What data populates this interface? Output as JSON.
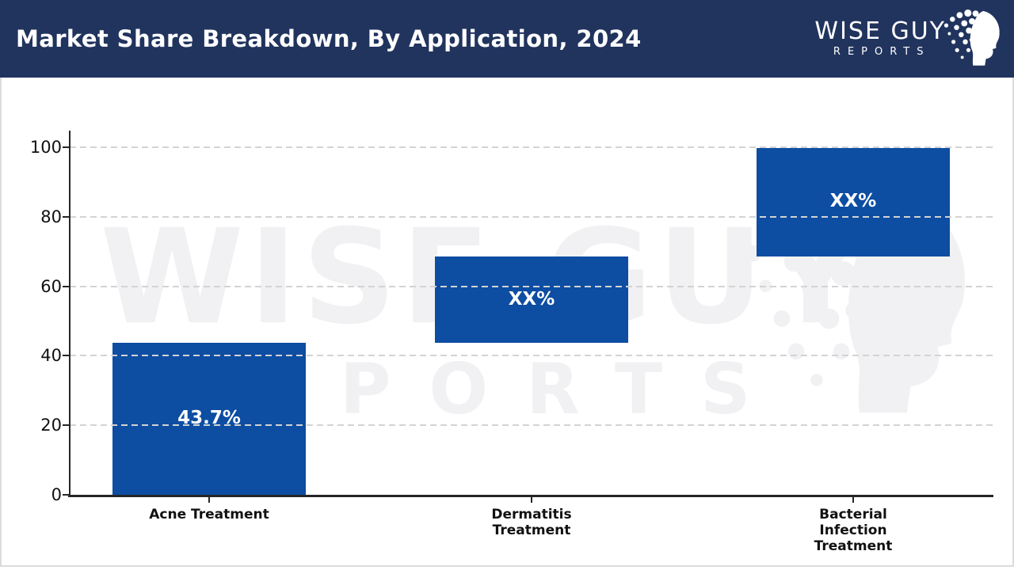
{
  "header": {
    "title": "Market Share Breakdown, By Application, 2024",
    "brand": {
      "wordmark": "WISE GUY",
      "subtitle": "REPORTS"
    },
    "bg_color": "#21345e"
  },
  "watermark": {
    "wordmark": "WISE GUY",
    "subtitle": "REPORTS"
  },
  "chart_data": {
    "type": "bar",
    "variant": "floating-segment waterfall of market share",
    "title": "Market Share Breakdown, By Application, 2024",
    "categories": [
      "Acne Treatment",
      "Dermatitis Treatment",
      "Bacterial Infection Treatment"
    ],
    "category_lines": [
      [
        "Acne Treatment"
      ],
      [
        "Dermatitis",
        "Treatment"
      ],
      [
        "Bacterial",
        "Infection",
        "Treatment"
      ]
    ],
    "series": [
      {
        "name": "Market share (%)",
        "segments": [
          {
            "category": "Acne Treatment",
            "start": 0,
            "end": 43.7,
            "label": "43.7%"
          },
          {
            "category": "Dermatitis Treatment",
            "start": 43.7,
            "end": 68.6,
            "label": "XX%"
          },
          {
            "category": "Bacterial Infection Treatment",
            "start": 68.6,
            "end": 99.8,
            "label": "XX%"
          }
        ]
      }
    ],
    "ylim": [
      0,
      100
    ],
    "y_ticks": [
      0,
      20,
      40,
      60,
      80,
      100
    ],
    "xlabel": "",
    "ylabel": "",
    "grid": {
      "horizontal": true,
      "style": "dashed",
      "color": "#d3d3d3"
    },
    "bar_color": "#0d4da2",
    "bar_label_color": "#ffffff",
    "axis_color": "#262626",
    "legend": null
  }
}
